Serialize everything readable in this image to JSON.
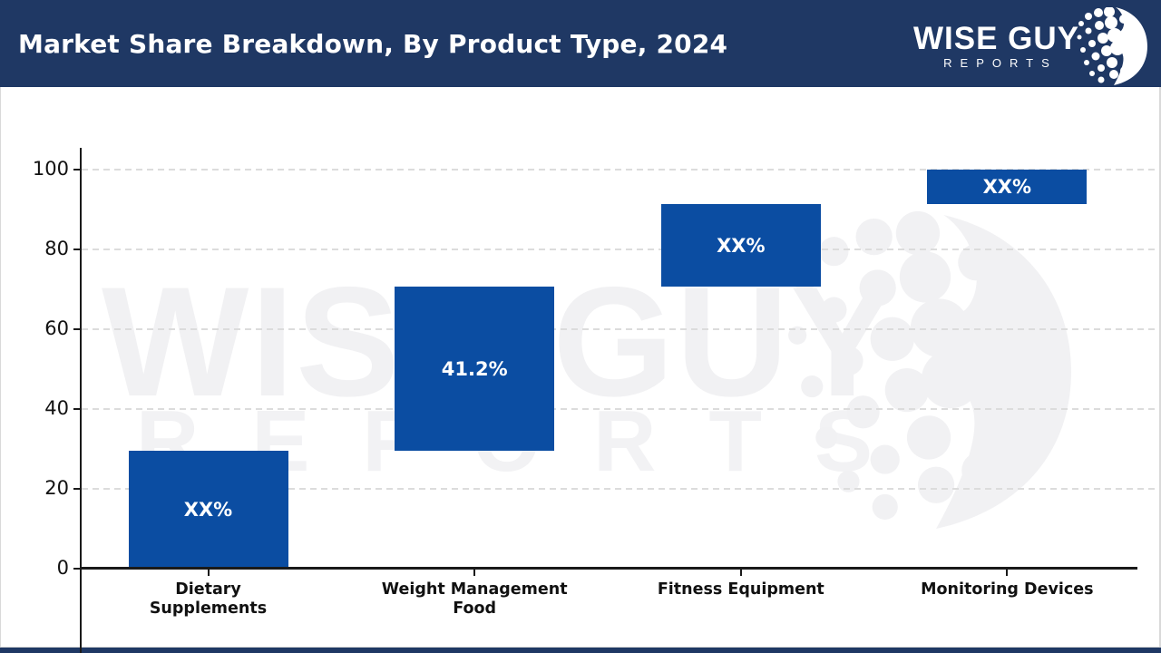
{
  "header": {
    "title": "Market Share Breakdown, By Product Type, 2024",
    "bg_color": "#1f3864",
    "logo": {
      "wise_guy": "WISE GUY",
      "reports": "REPORTS"
    }
  },
  "watermark": {
    "wise_guy": "WISE GUY",
    "reports": "REPORTS"
  },
  "chart_data": {
    "type": "bar",
    "subtype": "floating-waterfall",
    "title": "Market Share Breakdown, By Product Type, 2024",
    "categories": [
      "Dietary Supplements",
      "Weight Management Food",
      "Fitness Equipment",
      "Monitoring Devices"
    ],
    "bars": [
      {
        "category": "Dietary Supplements",
        "label_lines": [
          "Dietary",
          "Supplements"
        ],
        "start": 0,
        "end": 29.5,
        "value_label": "XX%"
      },
      {
        "category": "Weight Management Food",
        "label_lines": [
          "Weight Management",
          "Food"
        ],
        "start": 29.5,
        "end": 70.7,
        "value_label": "41.2%",
        "value": 41.2
      },
      {
        "category": "Fitness Equipment",
        "label_lines": [
          "Fitness Equipment"
        ],
        "start": 70.7,
        "end": 91.3,
        "value_label": "XX%"
      },
      {
        "category": "Monitoring Devices",
        "label_lines": [
          "Monitoring Devices"
        ],
        "start": 91.3,
        "end": 100,
        "value_label": "XX%"
      }
    ],
    "ylim": [
      0,
      100
    ],
    "yticks": [
      0,
      20,
      40,
      60,
      80,
      100
    ],
    "bar_color": "#0b4da2",
    "grid": "horizontal-dashed",
    "legend": "none"
  }
}
